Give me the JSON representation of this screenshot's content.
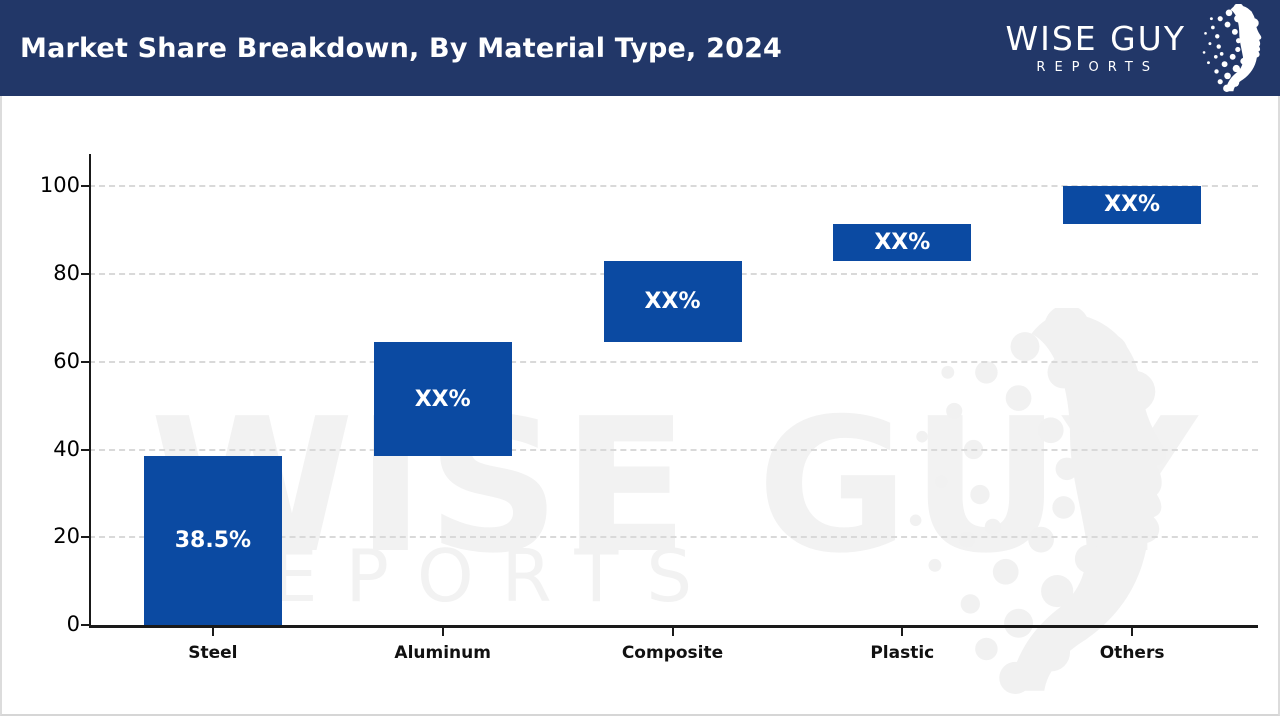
{
  "header": {
    "title": "Market Share Breakdown, By Material Type, 2024",
    "bg_color": "#223768",
    "logo": {
      "wordmark": "WISE GUY",
      "subtext": "REPORTS"
    }
  },
  "watermark": {
    "wordmark": "WISE GUY",
    "subtext": "REPORTS"
  },
  "chart_data": {
    "type": "bar",
    "subtype": "waterfall",
    "title": "Market Share Breakdown, By Material Type, 2024",
    "categories": [
      "Steel",
      "Aluminum",
      "Composite",
      "Plastic",
      "Others"
    ],
    "values": [
      38.5,
      26,
      18.5,
      8.5,
      8.5
    ],
    "cumulative": [
      38.5,
      64.5,
      83,
      91.5,
      100
    ],
    "bar_labels": [
      "38.5%",
      "XX%",
      "XX%",
      "XX%",
      "XX%"
    ],
    "xlabel": "",
    "ylabel": "",
    "y_ticks": [
      0,
      20,
      40,
      60,
      80,
      100
    ],
    "ylim": [
      0,
      106
    ],
    "grid": "horizontal-dashed",
    "legend": "none",
    "bar_color": "#0B4AA2",
    "bar_label_color": "#FFFFFF",
    "axis_color": "#1a1a1a",
    "gridline_color": "#d9d9d9"
  }
}
